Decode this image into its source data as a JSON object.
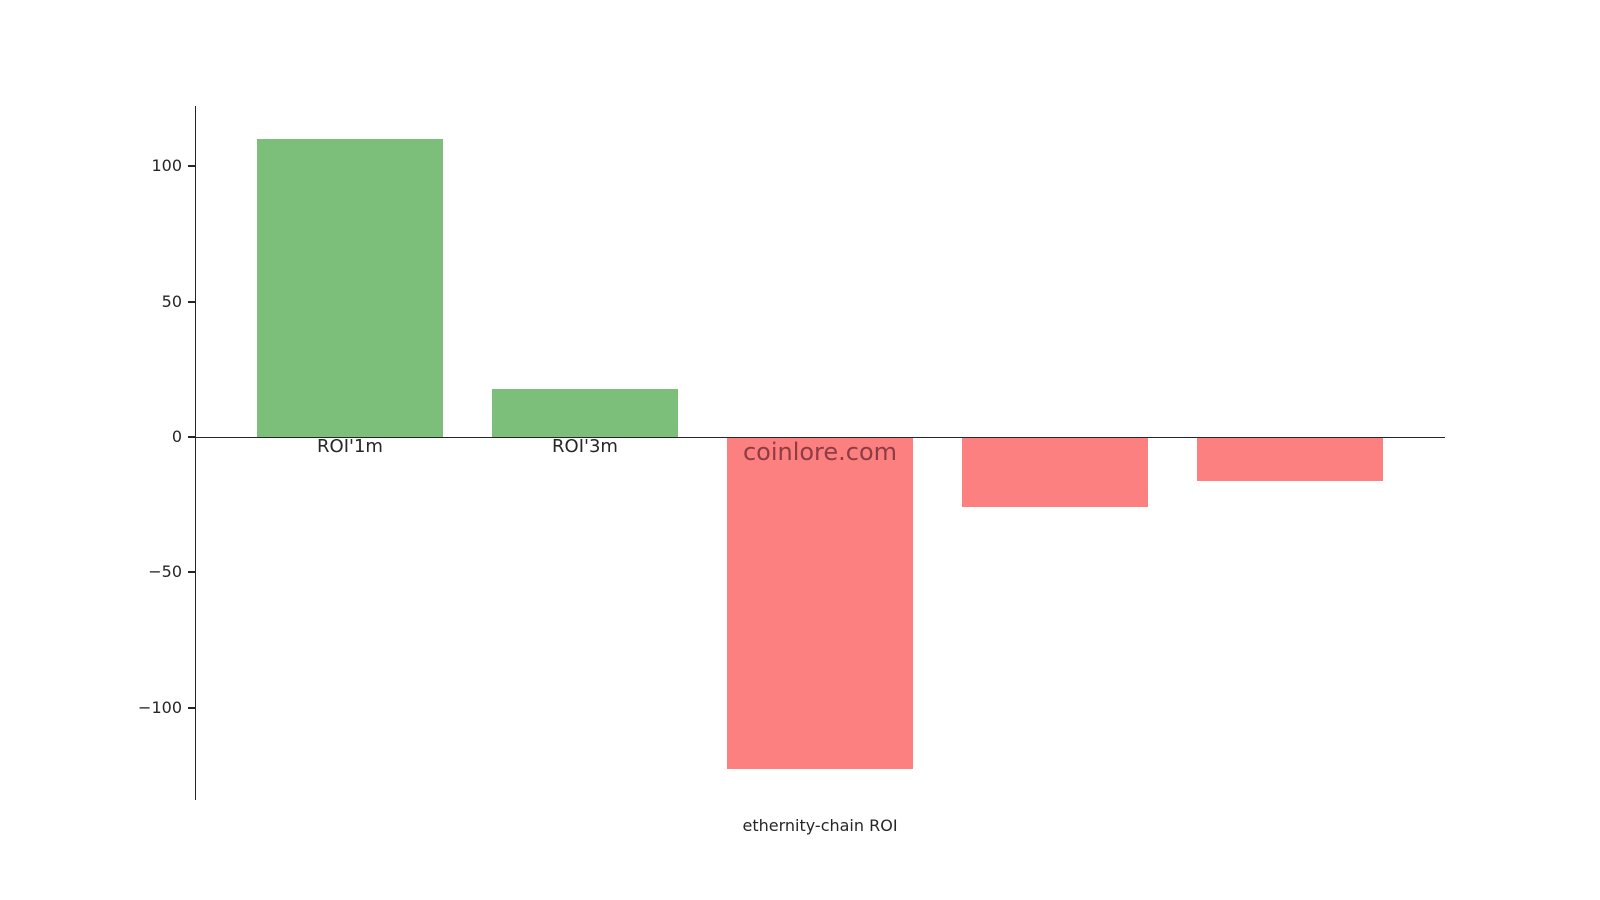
{
  "page": {
    "background": "#ffffff"
  },
  "chart_data": {
    "type": "bar",
    "title": "",
    "xlabel": "ethernity-chain ROI",
    "ylabel": "",
    "watermark": "coinlore.com",
    "categories": [
      "ROI'1m",
      "ROI'3m",
      "",
      "",
      ""
    ],
    "values": [
      110.3,
      17.9,
      -122.4,
      -25.5,
      -16.0
    ],
    "y_ticks": [
      100,
      50,
      0,
      -50,
      -100
    ],
    "ylim": [
      -134,
      122
    ],
    "grid": false,
    "legend_position": "none",
    "colors": {
      "positive_bar": "#7cbf7b",
      "negative_bar": "#fd8080",
      "watermark_text": "#8e3b44",
      "axis": "#262626",
      "tick_label": "#262626"
    }
  }
}
